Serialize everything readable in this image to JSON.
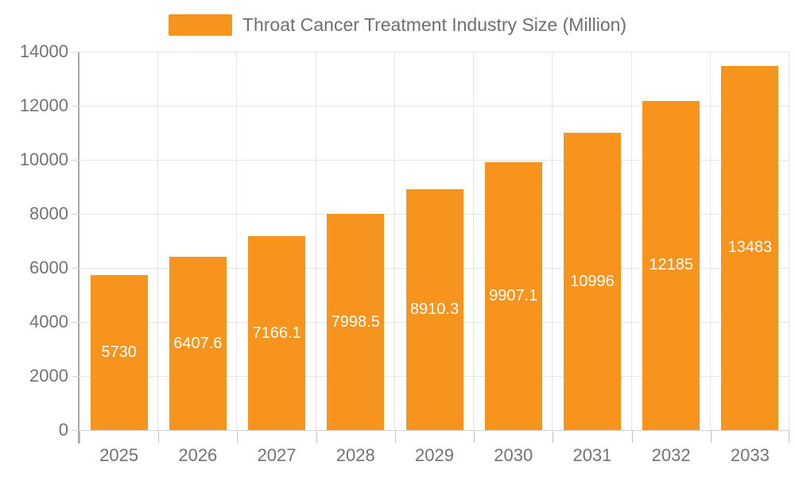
{
  "legend": {
    "label": "Throat Cancer Treatment Industry Size (Million)",
    "swatch_color": "#F7941E"
  },
  "chart_data": {
    "type": "bar",
    "title": "Throat Cancer Treatment Industry Size (Million)",
    "categories": [
      "2025",
      "2026",
      "2027",
      "2028",
      "2029",
      "2030",
      "2031",
      "2032",
      "2033"
    ],
    "values": [
      5730,
      6407.6,
      7166.1,
      7998.5,
      8910.3,
      9907.1,
      10996,
      12185,
      13483
    ],
    "value_labels": [
      "5730",
      "6407.6",
      "7166.1",
      "7998.5",
      "8910.3",
      "9907.1",
      "10996",
      "12185",
      "13483"
    ],
    "xlabel": "",
    "ylabel": "",
    "ylim": [
      0,
      14000
    ],
    "yticks": [
      0,
      2000,
      4000,
      6000,
      8000,
      10000,
      12000,
      14000
    ],
    "ytick_labels": [
      "0",
      "2000",
      "4000",
      "6000",
      "8000",
      "10000",
      "12000",
      "14000"
    ],
    "grid": true,
    "legend_position": "top",
    "bar_color": "#F7941E",
    "bar_label_color": "#FFFFFF"
  },
  "colors": {
    "background": "#FFFFFF",
    "axis_text": "#737373",
    "legend_text": "#6F6F6F",
    "gridline": "#E6E6E6",
    "y_axis_line": "#A8A8A8",
    "x_axis_line": "#D4D4D4"
  }
}
